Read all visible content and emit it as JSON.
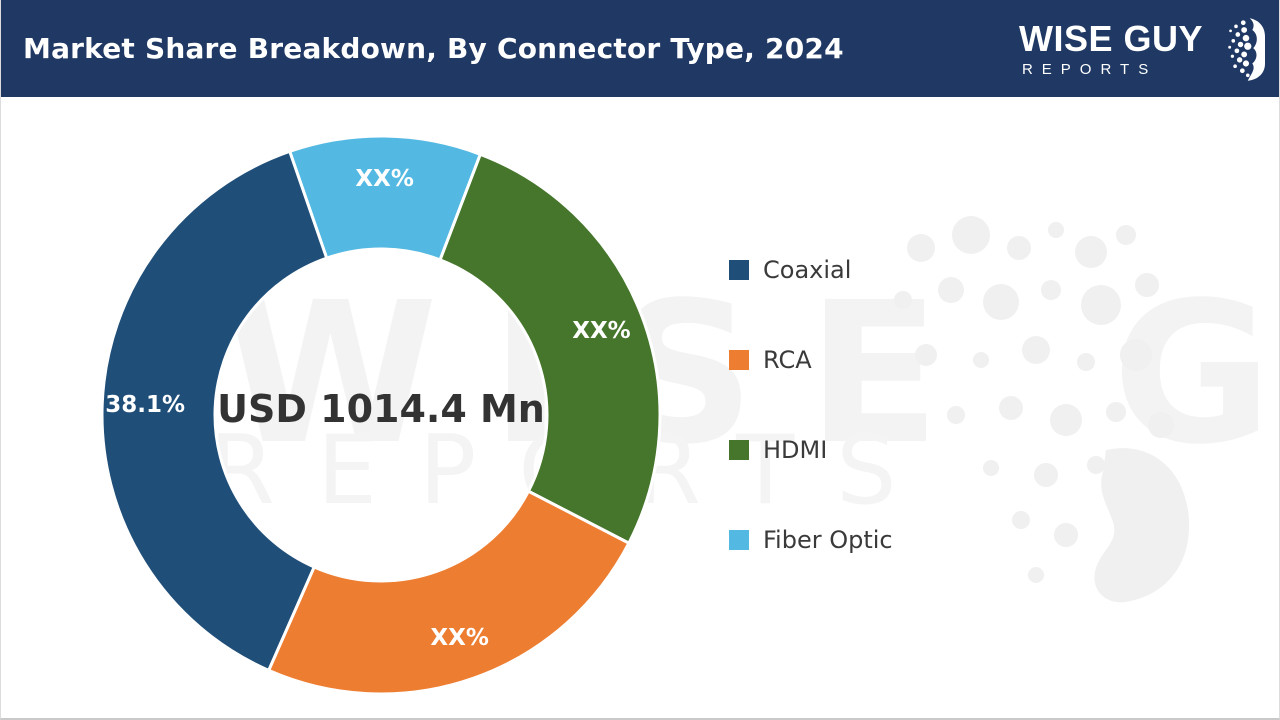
{
  "header": {
    "title": "Market Share Breakdown, By Connector Type, 2024",
    "logo": {
      "line1": "WISE GUY",
      "line2": "REPORTS"
    }
  },
  "watermark": {
    "line1": "WISE GUY",
    "line2": "REPORTS"
  },
  "chart_data": {
    "type": "donut",
    "title": "Market Share Breakdown, By Connector Type, 2024",
    "center_label": "USD 1014.4 Mn",
    "segments": [
      {
        "label": "Coaxial",
        "color": "#1F4E79",
        "share_pct": 38.1,
        "display_label": "38.1%"
      },
      {
        "label": "RCA",
        "color": "#ED7D31",
        "share_pct": 24.0,
        "display_label": "XX%"
      },
      {
        "label": "HDMI",
        "color": "#45762B",
        "share_pct": 26.8,
        "display_label": "XX%"
      },
      {
        "label": "Fiber Optic",
        "color": "#54B9E2",
        "share_pct": 11.1,
        "display_label": "XX%"
      }
    ],
    "clockwise_order_from_top": [
      "Fiber Optic",
      "HDMI",
      "RCA",
      "Coaxial"
    ],
    "start_angle_deg": -19.1,
    "legend_position": "right",
    "value_label_color": "#FFFFFF",
    "hole_label_color": "#333333"
  },
  "colors": {
    "header_bg": "#1F3864",
    "legend_text": "#3A3A3A",
    "watermark": "#F3F3F3"
  }
}
